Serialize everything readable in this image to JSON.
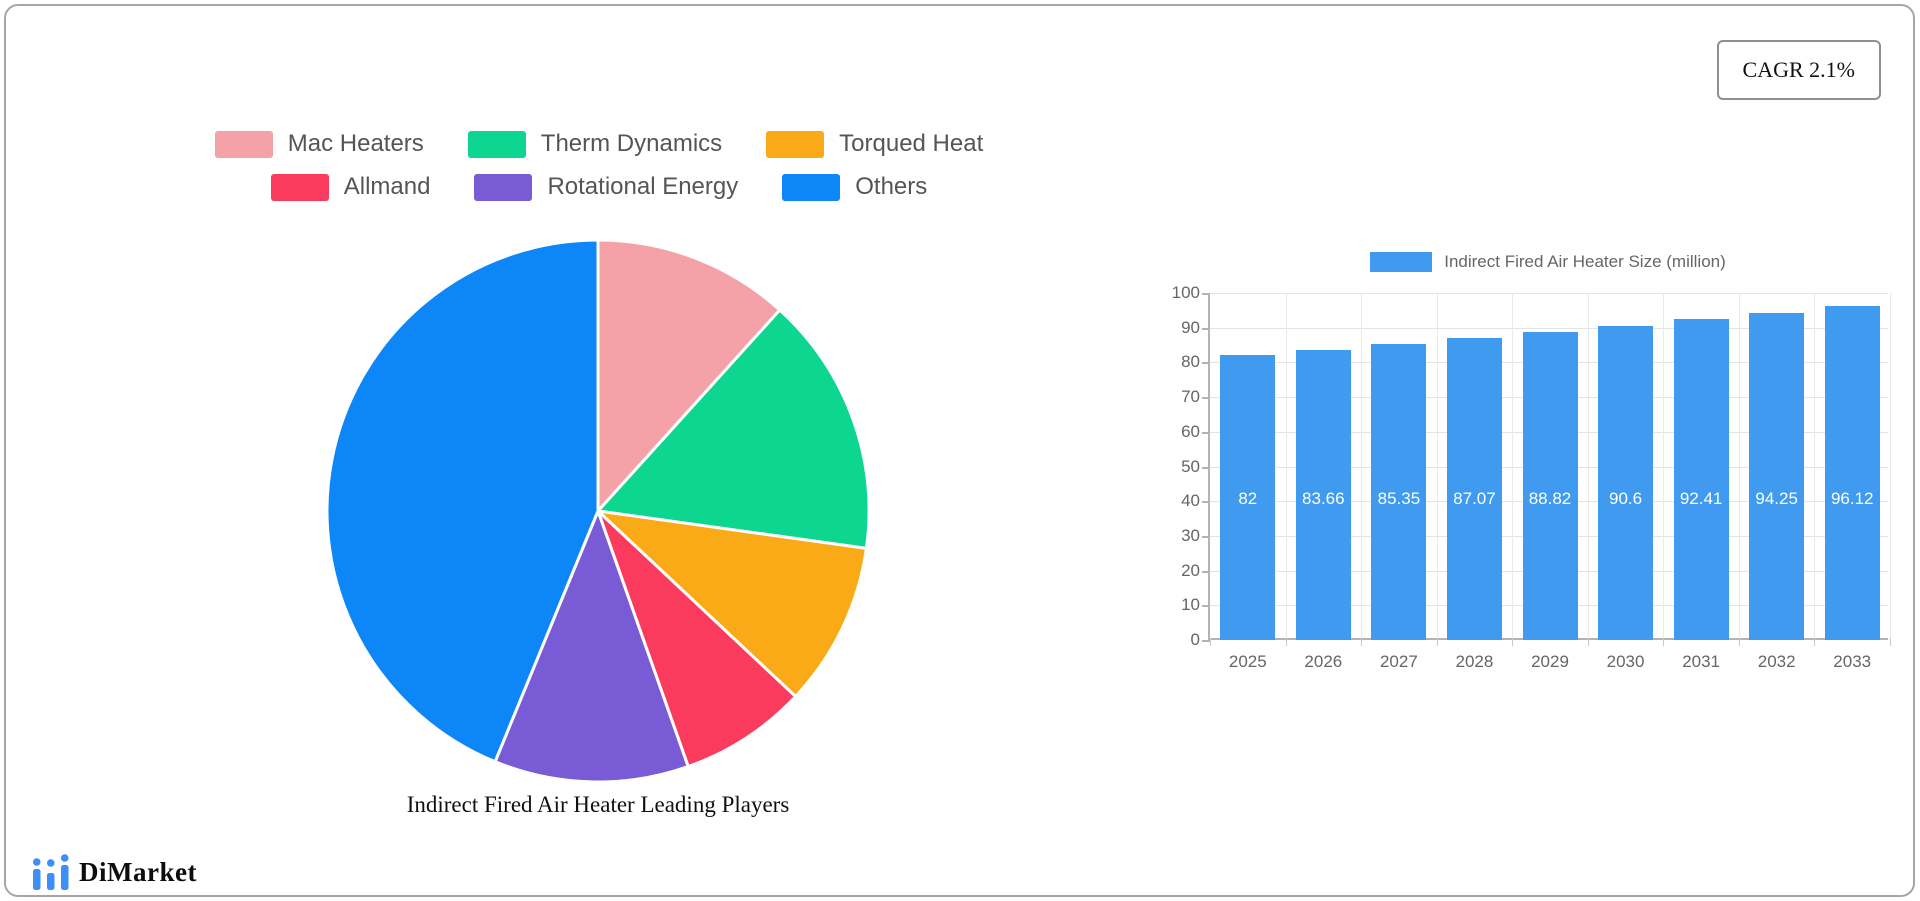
{
  "cagr": {
    "label": "CAGR 2.1%"
  },
  "brand": {
    "name": "DiMarket",
    "icon": "bar-chart-logo-icon",
    "icon_color": "#3e8ef7"
  },
  "chart_data": [
    {
      "type": "pie",
      "title": "Indirect Fired Air Heater Leading Players",
      "legend_position": "top",
      "legend_rows": [
        [
          0,
          1,
          2
        ],
        [
          3,
          4,
          5
        ]
      ],
      "start_angle_deg": 0,
      "direction": "clockwise",
      "slices": [
        {
          "label": "Mac Heaters",
          "value": 11.7,
          "color": "#f4a1a7"
        },
        {
          "label": "Therm Dynamics",
          "value": 15.5,
          "color": "#0cd68f"
        },
        {
          "label": "Torqued Heat",
          "value": 9.8,
          "color": "#fbaa17"
        },
        {
          "label": "Allmand",
          "value": 7.6,
          "color": "#fa3b5d"
        },
        {
          "label": "Rotational Energy",
          "value": 11.6,
          "color": "#7a5bd6"
        },
        {
          "label": "Others",
          "value": 43.8,
          "color": "#0d86f8"
        }
      ]
    },
    {
      "type": "bar",
      "legend_label": "Indirect Fired Air Heater Size (million)",
      "legend_position": "top",
      "categories": [
        "2025",
        "2026",
        "2027",
        "2028",
        "2029",
        "2030",
        "2031",
        "2032",
        "2033"
      ],
      "values": [
        82,
        83.66,
        85.35,
        87.07,
        88.82,
        90.6,
        92.41,
        94.25,
        96.12
      ],
      "bar_color": "#3f9af0",
      "value_label_color": "#ffffff",
      "ylim": [
        0,
        100
      ],
      "yticks": [
        0,
        10,
        20,
        30,
        40,
        50,
        60,
        70,
        80,
        90,
        100
      ],
      "grid": true
    }
  ]
}
